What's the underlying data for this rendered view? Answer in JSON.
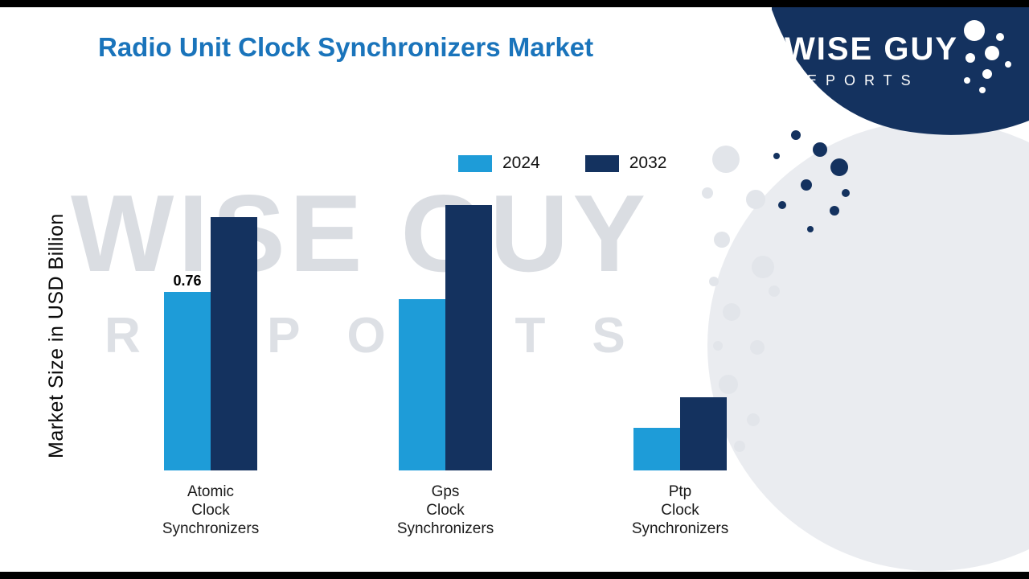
{
  "page": {
    "title": "Radio Unit Clock Synchronizers Market",
    "title_color": "#1a74bb",
    "brand": {
      "line1": "WISE GUY",
      "line2": "REPORTS",
      "bg_color": "#14325f"
    },
    "watermark": {
      "line1": "WISE GUY",
      "line2": "REPORTS"
    }
  },
  "chart_data": {
    "type": "bar",
    "title": "Radio Unit Clock Synchronizers Market",
    "xlabel": "",
    "ylabel": "Market Size in USD Billion",
    "categories": [
      "Atomic Clock Synchronizers",
      "Gps Clock Synchronizers",
      "Ptp Clock Synchronizers"
    ],
    "series": [
      {
        "name": "2024",
        "color": "#1e9cd8",
        "values": [
          0.76,
          0.73,
          0.18
        ],
        "value_labels": [
          "0.76",
          "",
          ""
        ]
      },
      {
        "name": "2032",
        "color": "#14325f",
        "values": [
          1.08,
          1.13,
          0.31
        ],
        "value_labels": [
          "",
          "",
          ""
        ]
      }
    ],
    "ylim": [
      0,
      1.2
    ],
    "grid": false,
    "legend_position": "top-center"
  }
}
